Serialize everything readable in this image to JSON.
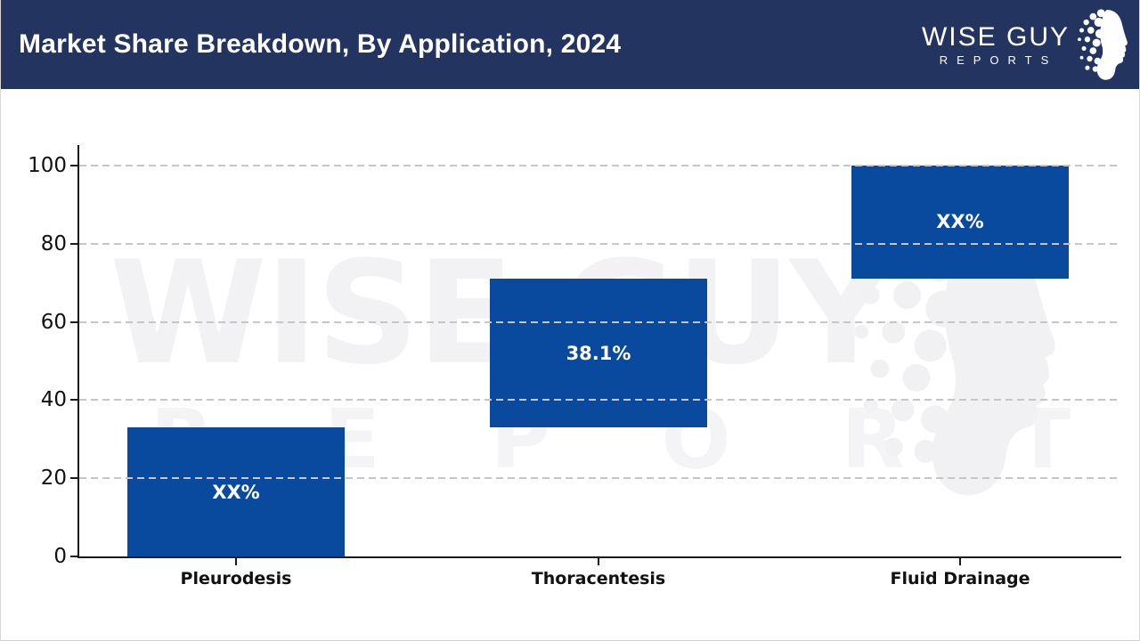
{
  "header": {
    "title": "Market Share Breakdown, By Application, 2024",
    "logo": {
      "line1": "WISE GUY",
      "line2": "REPORTS"
    }
  },
  "watermark": {
    "line1": "WISE GUY",
    "line2": "R E P O R T S"
  },
  "chart_data": {
    "type": "bar",
    "subtype": "floating-segment-waterfall",
    "title": "Market Share Breakdown, By Application, 2024",
    "categories": [
      "Pleurodesis",
      "Thoracentesis",
      "Fluid Drainage"
    ],
    "segments": [
      {
        "category": "Pleurodesis",
        "start": 0,
        "end": 33,
        "label": "XX%"
      },
      {
        "category": "Thoracentesis",
        "start": 33,
        "end": 71.1,
        "label": "38.1%"
      },
      {
        "category": "Fluid Drainage",
        "start": 71.1,
        "end": 100,
        "label": "XX%"
      }
    ],
    "xlabel": "",
    "ylabel": "",
    "ylim": [
      0,
      100
    ],
    "yticks": [
      0,
      20,
      40,
      60,
      80,
      100
    ],
    "grid": "horizontal dashed, drawn above bars",
    "legend": "none"
  },
  "colors": {
    "header_bg": "#233461",
    "bar_fill": "#0a4a9e",
    "bar_label_text": "#ffffff",
    "grid_line": "#c6c6c6",
    "axis_line": "#1a1a1a",
    "tick_label_text": "#111111",
    "watermark": "#f2f2f4",
    "background": "#ffffff"
  }
}
